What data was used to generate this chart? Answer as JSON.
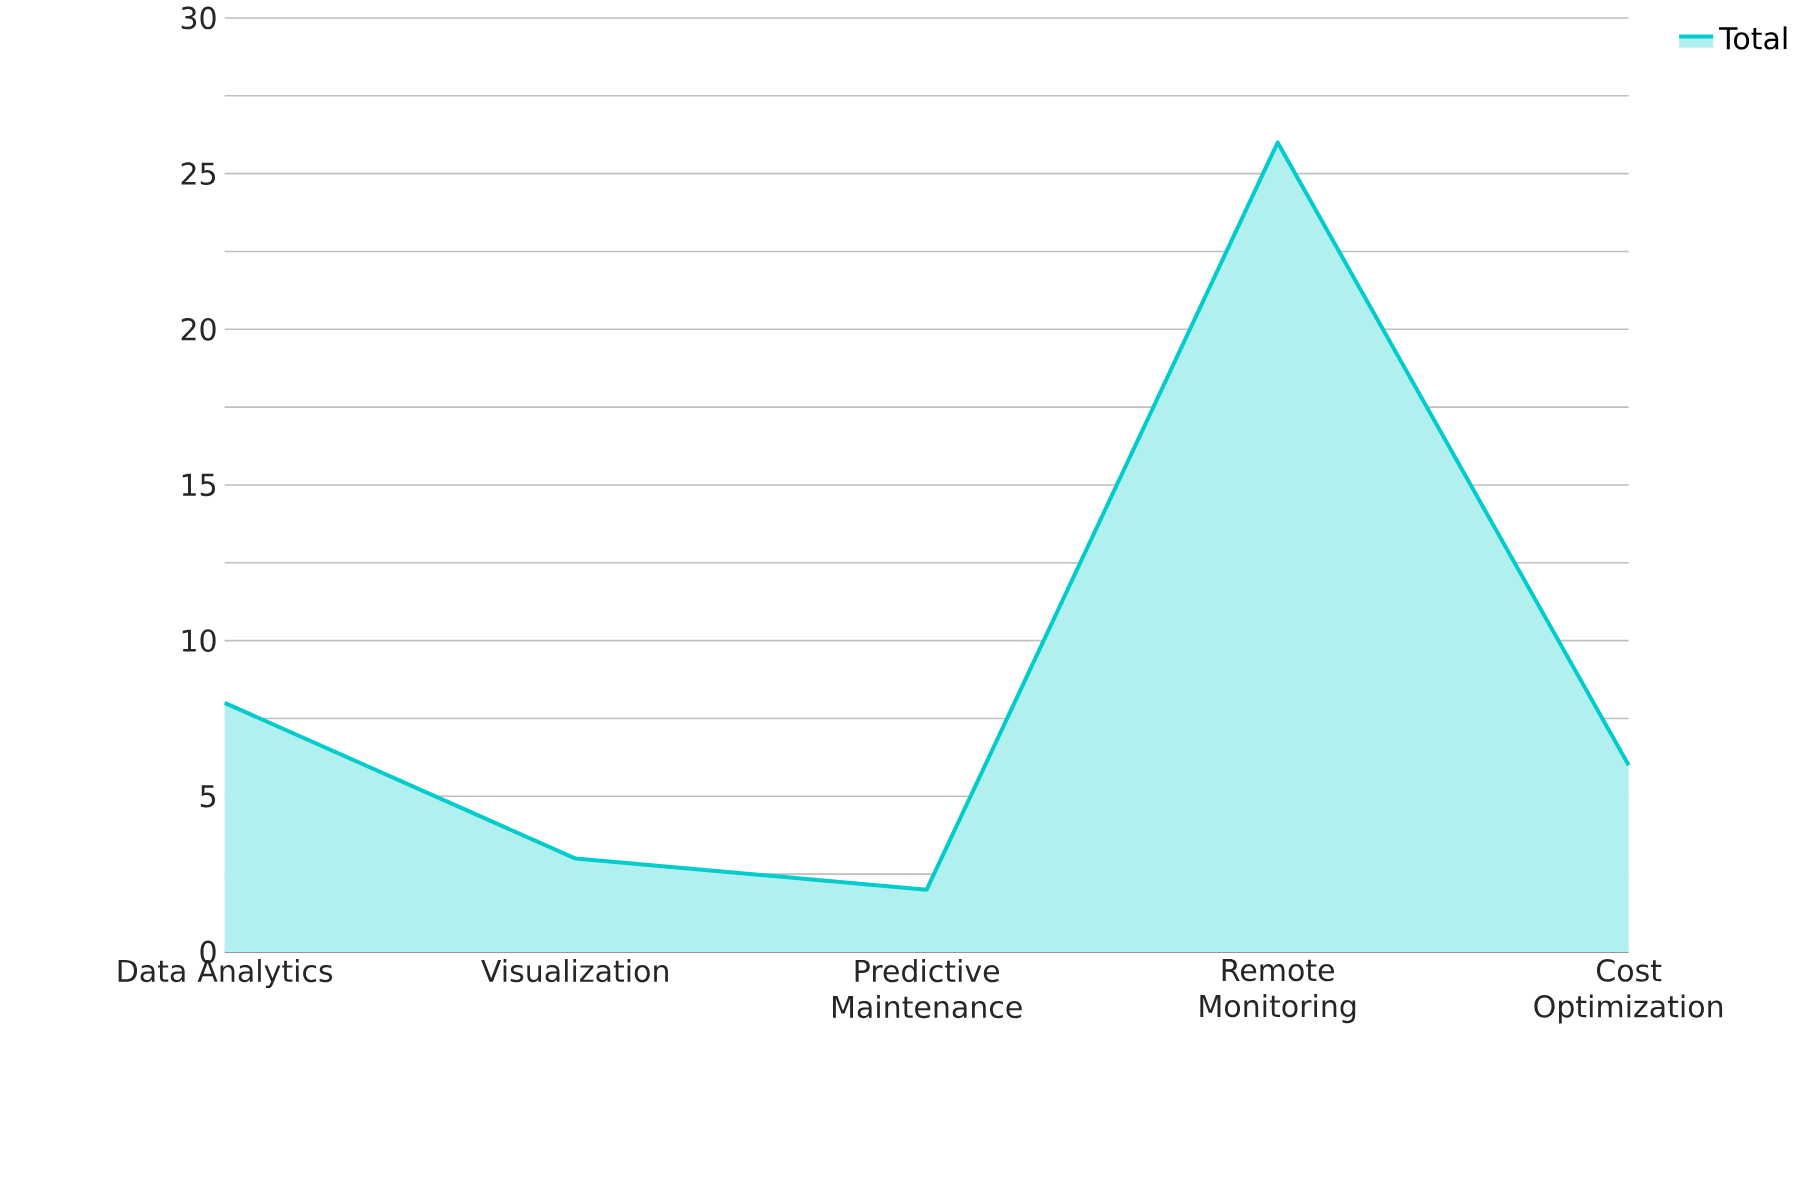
{
  "chart_data": {
    "type": "area",
    "categories": [
      "Data Analytics",
      "Visualization",
      "Predictive Maintenance",
      "Remote Monitoring",
      "Cost Optimization"
    ],
    "series": [
      {
        "name": "Total",
        "color": "#00cccc",
        "values": [
          8,
          3,
          2,
          26,
          6
        ]
      }
    ],
    "ylim": [
      0,
      30
    ],
    "yticks": [
      0,
      {
        "value": 2.5,
        "label": null
      },
      5,
      {
        "value": 7.5,
        "label": null
      },
      10,
      {
        "value": 12.5,
        "label": null
      },
      15,
      {
        "value": 17.5,
        "label": null
      },
      20,
      {
        "value": 22.5,
        "label": null
      },
      25,
      {
        "value": 27.5,
        "label": null
      },
      30
    ],
    "grid": "y",
    "legend": "top right"
  }
}
